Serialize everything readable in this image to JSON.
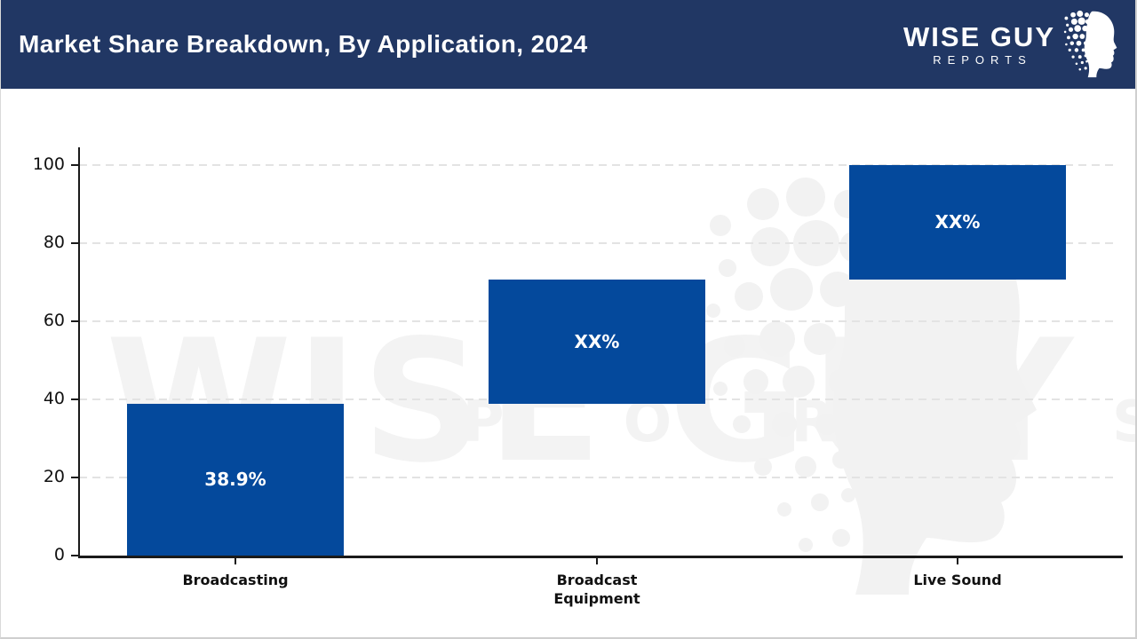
{
  "header": {
    "title": "Market Share Breakdown, By Application, 2024",
    "logo": {
      "line1": "WISE GUY",
      "line2": "REPORTS"
    }
  },
  "watermark": {
    "line1": "WISE GUY",
    "line2": "R E P O R T S"
  },
  "chart_data": {
    "type": "bar",
    "subtype": "floating-waterfall",
    "title": "Market Share Breakdown, By Application, 2024",
    "categories": [
      "Broadcasting",
      "Broadcast\nEquipment",
      "Live Sound"
    ],
    "segments": [
      {
        "category": "Broadcasting",
        "start": 0,
        "end": 38.9,
        "label": "38.9%"
      },
      {
        "category": "Broadcast Equipment",
        "start": 38.9,
        "end": 70.7,
        "label": "XX%"
      },
      {
        "category": "Live Sound",
        "start": 70.7,
        "end": 100,
        "label": "XX%"
      }
    ],
    "yticks": [
      0,
      20,
      40,
      60,
      80,
      100
    ],
    "ylim": [
      0,
      105
    ],
    "grid": "dashed-horizontal",
    "legend": "none",
    "bar_color": "#04499c",
    "bar_label_color": "#ffffff"
  },
  "colors": {
    "header_bg": "#213764",
    "bar": "#04499c",
    "grid": "#e3e3e3",
    "axis": "#1a1a1a",
    "watermark": "#f3f3f3"
  }
}
